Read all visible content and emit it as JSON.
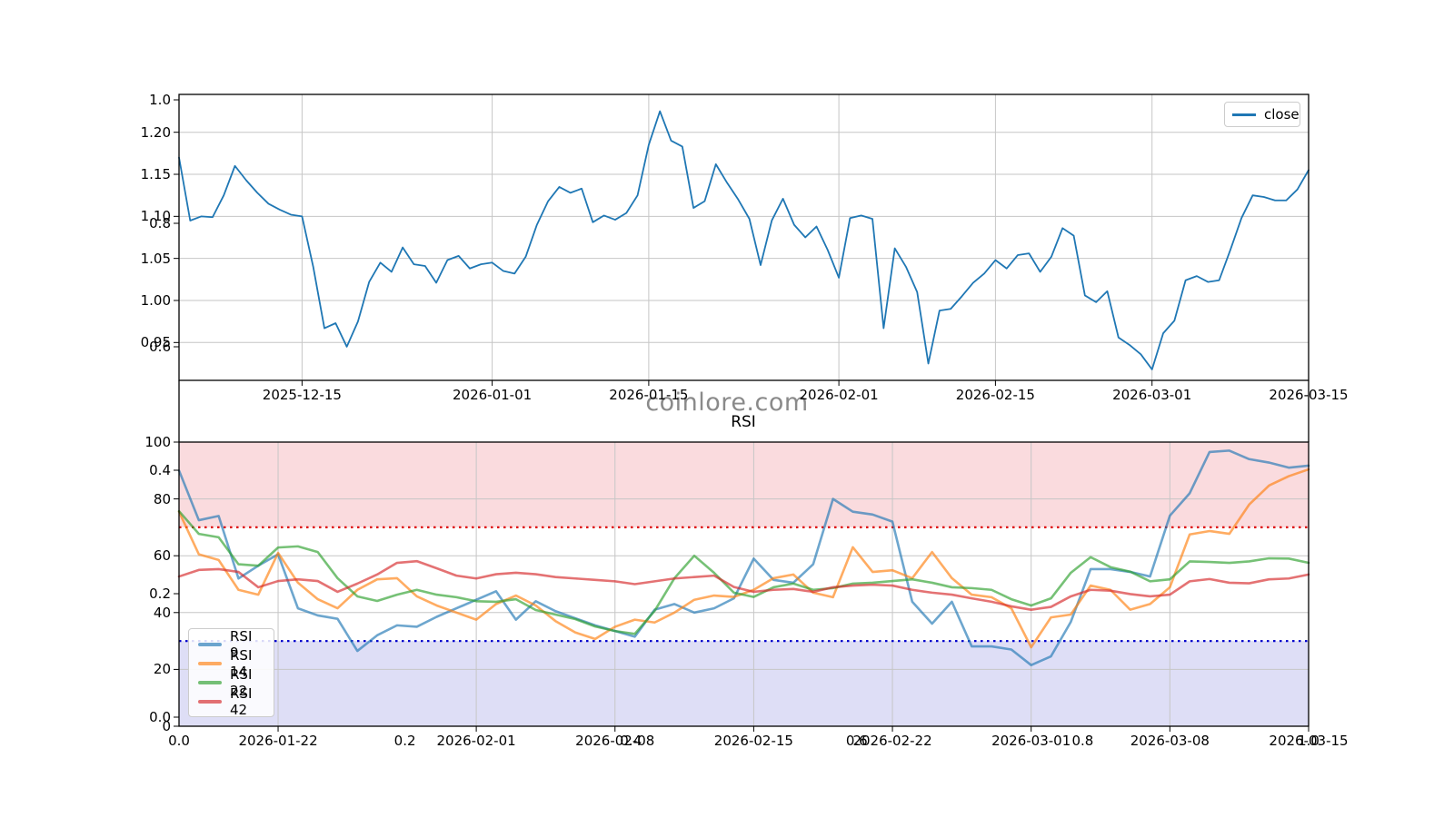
{
  "watermark": "coinlore.com",
  "figure_axis": {
    "y_tick_labels": [
      "1.0",
      "0.8",
      "0.6",
      "0.4",
      "0.2",
      "0.0"
    ],
    "x_tick_labels": [
      "0.0",
      "0.2",
      "0.4",
      "0.6",
      "0.8",
      "1.0"
    ]
  },
  "chart_data": [
    {
      "type": "line",
      "title": "",
      "xlabel": "",
      "ylabel": "",
      "grid": true,
      "legend_position": "upper right",
      "ylim": [
        0.905,
        1.245
      ],
      "y_ticks": [
        0.95,
        1.0,
        1.05,
        1.1,
        1.15,
        1.2
      ],
      "y_tick_labels": [
        "0.95",
        "1.00",
        "1.05",
        "1.10",
        "1.15",
        "1.20"
      ],
      "x_tick_labels": [
        "2025-12-15",
        "2026-01-01",
        "2026-01-15",
        "2026-02-01",
        "2026-02-15",
        "2026-03-01",
        "2026-03-15"
      ],
      "x_tick_days": [
        11,
        28,
        42,
        59,
        73,
        87,
        101
      ],
      "x_range": [
        "2025-12-04",
        "2026-03-15"
      ],
      "frequency": "daily",
      "series": [
        {
          "name": "close",
          "color": "#1f77b4",
          "opacity": 1,
          "width": 1.8,
          "values": [
            1.17,
            1.095,
            1.1,
            1.099,
            1.125,
            1.16,
            1.143,
            1.128,
            1.115,
            1.108,
            1.102,
            1.1,
            1.04,
            0.967,
            0.973,
            0.945,
            0.975,
            1.022,
            1.045,
            1.034,
            1.063,
            1.043,
            1.041,
            1.021,
            1.048,
            1.053,
            1.038,
            1.043,
            1.045,
            1.035,
            1.032,
            1.052,
            1.09,
            1.118,
            1.135,
            1.128,
            1.133,
            1.093,
            1.101,
            1.096,
            1.104,
            1.125,
            1.185,
            1.225,
            1.19,
            1.183,
            1.11,
            1.118,
            1.162,
            1.14,
            1.12,
            1.097,
            1.042,
            1.095,
            1.121,
            1.09,
            1.075,
            1.088,
            1.06,
            1.027,
            1.098,
            1.101,
            1.097,
            0.967,
            1.062,
            1.04,
            1.01,
            0.925,
            0.988,
            0.99,
            1.005,
            1.021,
            1.032,
            1.048,
            1.038,
            1.054,
            1.056,
            1.034,
            1.052,
            1.086,
            1.077,
            1.006,
            0.998,
            1.011,
            0.956,
            0.947,
            0.936,
            0.918,
            0.961,
            0.976,
            1.024,
            1.029,
            1.022,
            1.024,
            1.06,
            1.098,
            1.125,
            1.123,
            1.119,
            1.119,
            1.132,
            1.155
          ]
        }
      ]
    },
    {
      "type": "line",
      "title": "RSI",
      "xlabel": "",
      "ylabel": "",
      "grid": true,
      "legend_position": "lower left",
      "ylim": [
        0,
        100
      ],
      "y_ticks": [
        0,
        20,
        40,
        60,
        80,
        100
      ],
      "y_tick_labels": [
        "0",
        "20",
        "40",
        "60",
        "80",
        "100"
      ],
      "x_tick_labels": [
        "2026-01-22",
        "2026-02-01",
        "2026-02-08",
        "2026-02-15",
        "2026-02-22",
        "2026-03-01",
        "2026-03-08",
        "2026-03-15"
      ],
      "x_tick_days": [
        5,
        15,
        22,
        29,
        36,
        43,
        50,
        57
      ],
      "x_range": [
        "2026-01-17",
        "2026-03-15"
      ],
      "frequency": "daily",
      "overbought_level": 70,
      "oversold_level": 30,
      "overbought_band_color": "#fadbde",
      "oversold_band_color": "#dedef6",
      "overbought_line_color": "#dd0000",
      "oversold_line_color": "#0000cc",
      "series": [
        {
          "name": "RSI 9",
          "color": "#1f77b4",
          "opacity": 0.65,
          "width": 2.6,
          "values": [
            90,
            72.5,
            74,
            52,
            56.5,
            60.5,
            41.5,
            39,
            37.8,
            26.5,
            32,
            35.5,
            35,
            38.5,
            41.5,
            44.5,
            47.5,
            37.5,
            44,
            40.5,
            38,
            35.5,
            33.5,
            31.5,
            41,
            43,
            40,
            41.5,
            45,
            59,
            51.5,
            50.5,
            57,
            80,
            75.5,
            74.5,
            72,
            43.8,
            36.1,
            43.8,
            28.1,
            28.1,
            27,
            21.5,
            24.6,
            36.7,
            55.3,
            55.3,
            54.3,
            52.7,
            74.1,
            82,
            96.5,
            97,
            94,
            92.8,
            91,
            91.7
          ]
        },
        {
          "name": "RSI 14",
          "color": "#ff7f0e",
          "opacity": 0.65,
          "width": 2.6,
          "values": [
            75.5,
            60.5,
            58.5,
            48,
            46.3,
            61,
            50.5,
            44.7,
            41.5,
            48,
            51.7,
            52.1,
            45.7,
            42.5,
            40,
            37.5,
            43,
            46,
            42.5,
            37,
            33,
            30.7,
            35,
            37.5,
            36.5,
            40,
            44.5,
            46,
            45.5,
            48,
            52.1,
            53.4,
            47,
            45.4,
            63,
            54.3,
            54.9,
            52.1,
            61.3,
            52.1,
            46.3,
            45.4,
            41.5,
            27.8,
            38.3,
            39.3,
            49.5,
            48,
            41,
            43,
            48.9,
            67.5,
            68.7,
            67.7,
            78,
            84.7,
            88,
            90.4
          ]
        },
        {
          "name": "RSI 22",
          "color": "#2ca02c",
          "opacity": 0.65,
          "width": 2.6,
          "values": [
            75.7,
            67.7,
            66.5,
            57,
            56.5,
            62.9,
            63.3,
            61.3,
            52.1,
            45.7,
            44.1,
            46.3,
            48,
            46.3,
            45.4,
            44,
            43.8,
            44.7,
            40.9,
            39.3,
            37.7,
            35.1,
            33.5,
            32.5,
            40.6,
            52.1,
            60,
            54,
            47,
            45.5,
            48.9,
            50.2,
            48,
            48.6,
            50.2,
            50.5,
            51.1,
            51.7,
            50.5,
            48.9,
            48.6,
            48,
            44.7,
            42.5,
            45,
            54,
            59.5,
            56,
            54.4,
            51,
            51.7,
            58,
            57.8,
            57.5,
            58,
            59.1,
            59,
            57.5
          ]
        },
        {
          "name": "RSI 42",
          "color": "#d62728",
          "opacity": 0.65,
          "width": 2.6,
          "values": [
            52.7,
            55,
            55.3,
            54.3,
            48.9,
            51.1,
            51.7,
            51.1,
            47.3,
            50.2,
            53.4,
            57.5,
            58.1,
            55.6,
            53,
            52,
            53.5,
            54,
            53.5,
            52.5,
            52,
            51.5,
            51,
            50,
            51,
            52,
            52.5,
            53,
            49,
            47.3,
            48,
            48.3,
            47.3,
            48.9,
            49.5,
            49.8,
            49.5,
            48,
            47,
            46.3,
            45,
            43.8,
            42.2,
            41,
            42,
            45.7,
            48,
            47.7,
            46.5,
            45.7,
            46.3,
            51,
            51.8,
            50.5,
            50.3,
            51.7,
            52,
            53.4
          ]
        }
      ]
    }
  ]
}
